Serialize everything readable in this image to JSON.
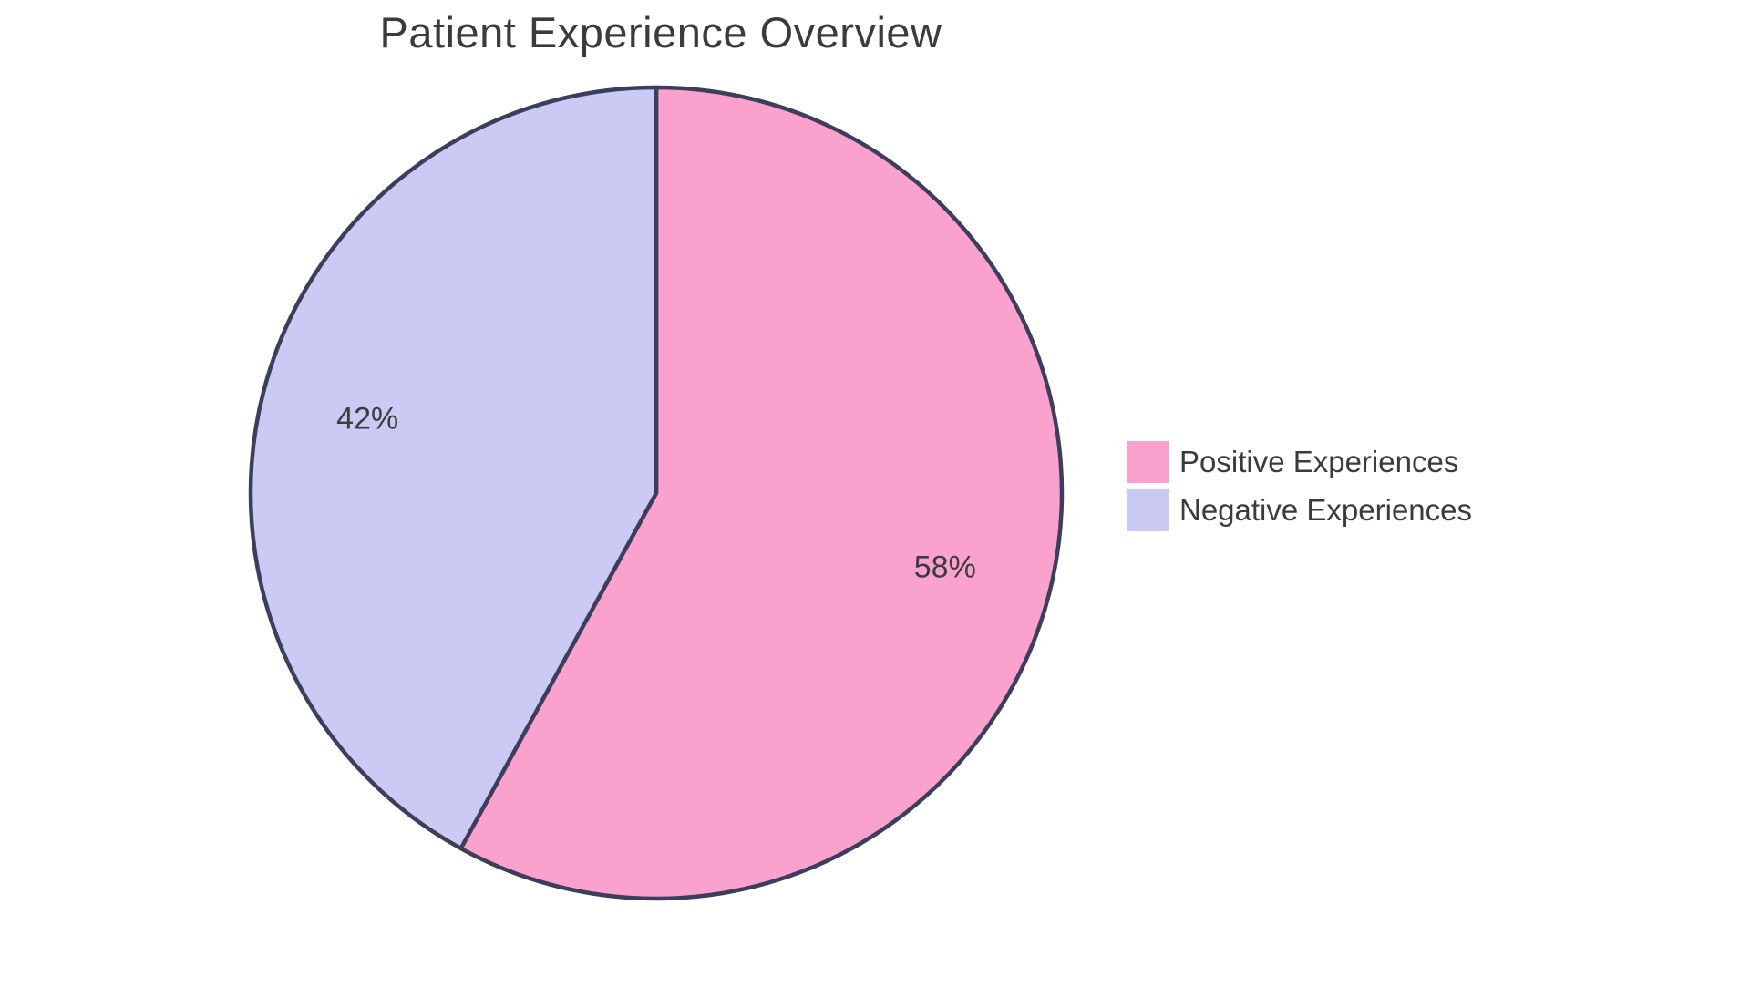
{
  "page": {
    "background": "#FFFFFF"
  },
  "chart_data": {
    "type": "pie",
    "title": "Patient Experience Overview",
    "slices": [
      {
        "label": "Positive Experiences",
        "value": 58,
        "pct_label": "58%",
        "color": "#FBA1CE"
      },
      {
        "label": "Negative Experiences",
        "value": 42,
        "pct_label": "42%",
        "color": "#CACAF4"
      }
    ],
    "unit": "%",
    "start_angle_deg": 0,
    "direction": "clockwise",
    "legend_position": "right",
    "styles": {
      "slice_stroke": "#3D3D5C",
      "slice_stroke_width": 4.5,
      "percent_label_color": "#3C3C3C",
      "title_color": "#3B3B3B",
      "legend_text_color": "#3B3B3B",
      "background": "#FFFFFF"
    }
  }
}
